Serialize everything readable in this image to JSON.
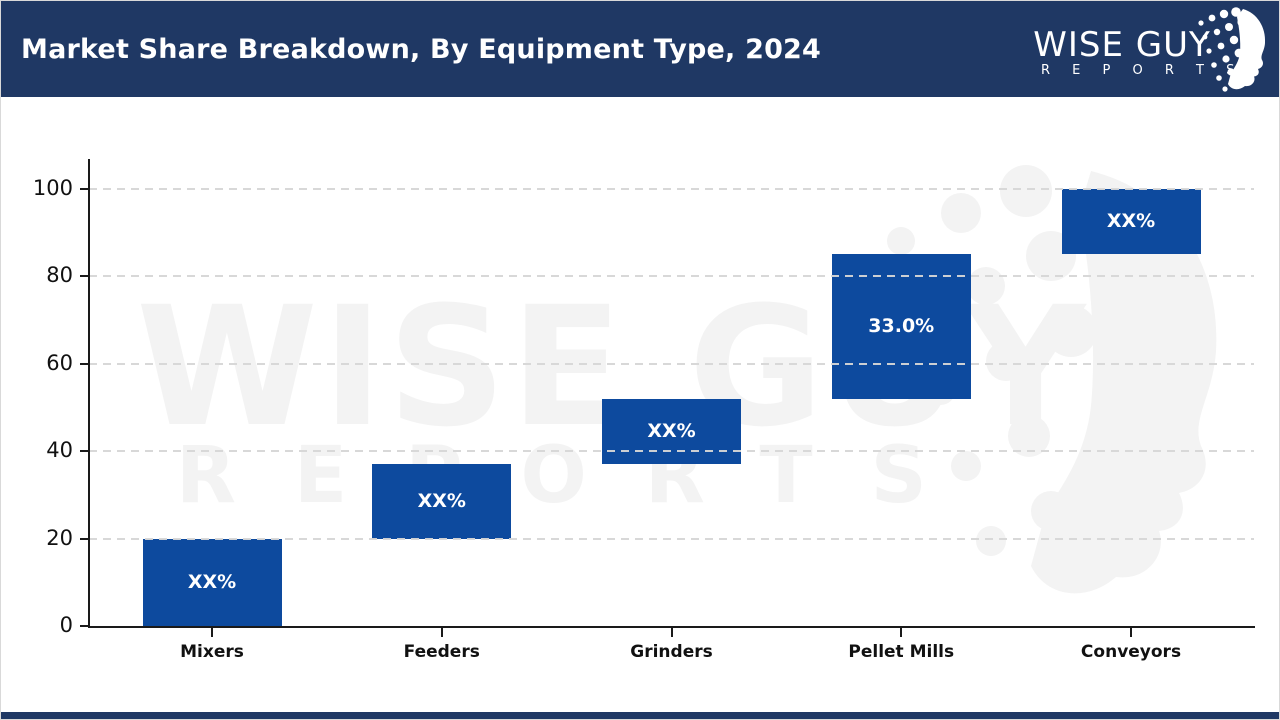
{
  "header": {
    "title": "Market Share Breakdown, By Equipment Type, 2024",
    "bg_color": "#1f3864",
    "logo": {
      "line1": "WISE GUY",
      "line2": "R E P O R T S"
    }
  },
  "watermark": {
    "line1": "WISE GUY",
    "line2": "REPORTS"
  },
  "footer": {
    "bg_color": "#1f3864"
  },
  "chart_data": {
    "type": "bar",
    "variant": "waterfall",
    "title": "Market Share Breakdown, By Equipment Type, 2024",
    "categories": [
      "Mixers",
      "Feeders",
      "Grinders",
      "Pellet Mills",
      "Conveyors"
    ],
    "segments": [
      {
        "category": "Mixers",
        "start": 0,
        "end": 20,
        "label": "XX%"
      },
      {
        "category": "Feeders",
        "start": 20,
        "end": 37,
        "label": "XX%"
      },
      {
        "category": "Grinders",
        "start": 37,
        "end": 52,
        "label": "XX%"
      },
      {
        "category": "Pellet Mills",
        "start": 52,
        "end": 85,
        "label": "33.0%"
      },
      {
        "category": "Conveyors",
        "start": 85,
        "end": 100,
        "label": "XX%"
      }
    ],
    "yticks": [
      0,
      20,
      40,
      60,
      80,
      100
    ],
    "ylim": [
      0,
      105
    ],
    "xlabel": "",
    "ylabel": "",
    "legend": "none",
    "grid": "horizontal-dashed-over-bars",
    "bar_color": "#0d4a9e",
    "bar_label_color": "#ffffff",
    "axis_color": "#1a1a1a"
  }
}
